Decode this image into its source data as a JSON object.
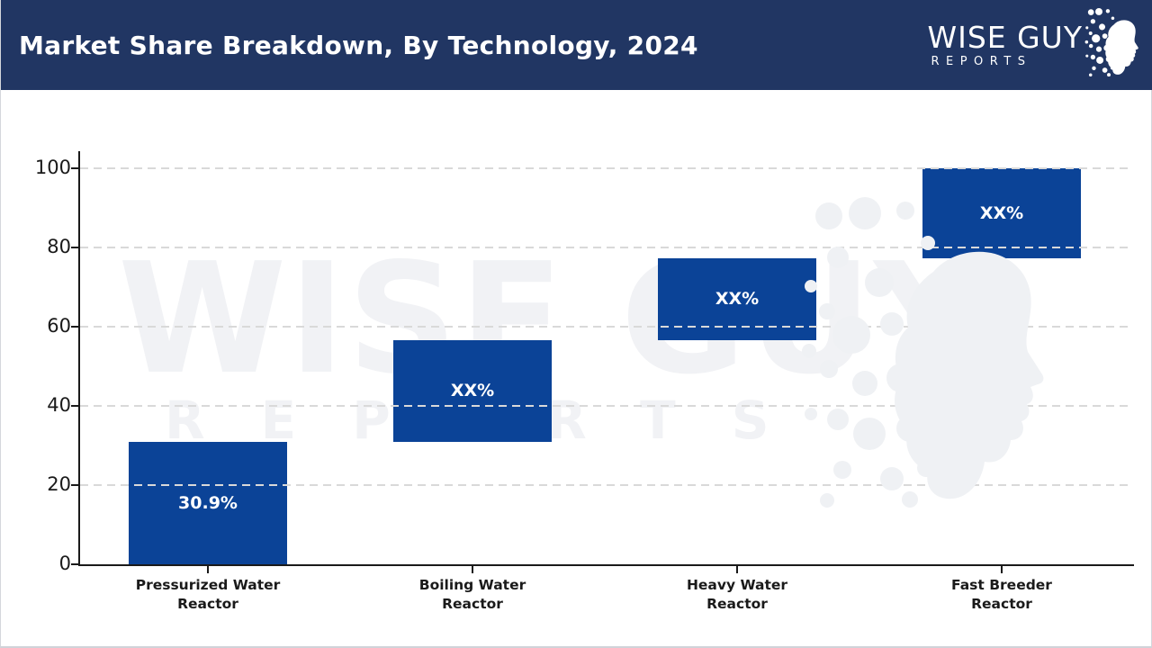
{
  "header": {
    "title": "Market Share Breakdown, By Technology, 2024",
    "logo_line1": "WISE GUY",
    "logo_line2": "REPORTS",
    "bg_color": "#213663"
  },
  "watermark": {
    "line1": "WISE GUY",
    "line2": "REPORTS"
  },
  "chart_data": {
    "type": "bar",
    "subtype": "floating-waterfall-bars",
    "title": "Market Share Breakdown, By Technology, 2024",
    "categories": [
      "Pressurized Water Reactor",
      "Boiling Water Reactor",
      "Heavy Water Reactor",
      "Fast Breeder Reactor"
    ],
    "category_lines": [
      [
        "Pressurized Water",
        "Reactor"
      ],
      [
        "Boiling Water",
        "Reactor"
      ],
      [
        "Heavy Water",
        "Reactor"
      ],
      [
        "Fast Breeder",
        "Reactor"
      ]
    ],
    "series": [
      {
        "name": "Market share (%)",
        "segments": [
          {
            "from": 0,
            "to": 30.9,
            "label": "30.9%"
          },
          {
            "from": 30.9,
            "to": 56.6,
            "label": "XX%"
          },
          {
            "from": 56.6,
            "to": 77.3,
            "label": "XX%"
          },
          {
            "from": 77.3,
            "to": 100,
            "label": "XX%"
          }
        ]
      }
    ],
    "bar_labels": [
      "30.9%",
      "XX%",
      "XX%",
      "XX%"
    ],
    "ylim": [
      0,
      100
    ],
    "yticks": [
      0,
      20,
      40,
      60,
      80,
      100
    ],
    "grid": "horizontal-dashed",
    "legend": "none",
    "bar_color": "#0b4397",
    "bar_label_color": "#ffffff",
    "axis_color": "#1a1a1a",
    "grid_color": "#d9d9d9"
  }
}
